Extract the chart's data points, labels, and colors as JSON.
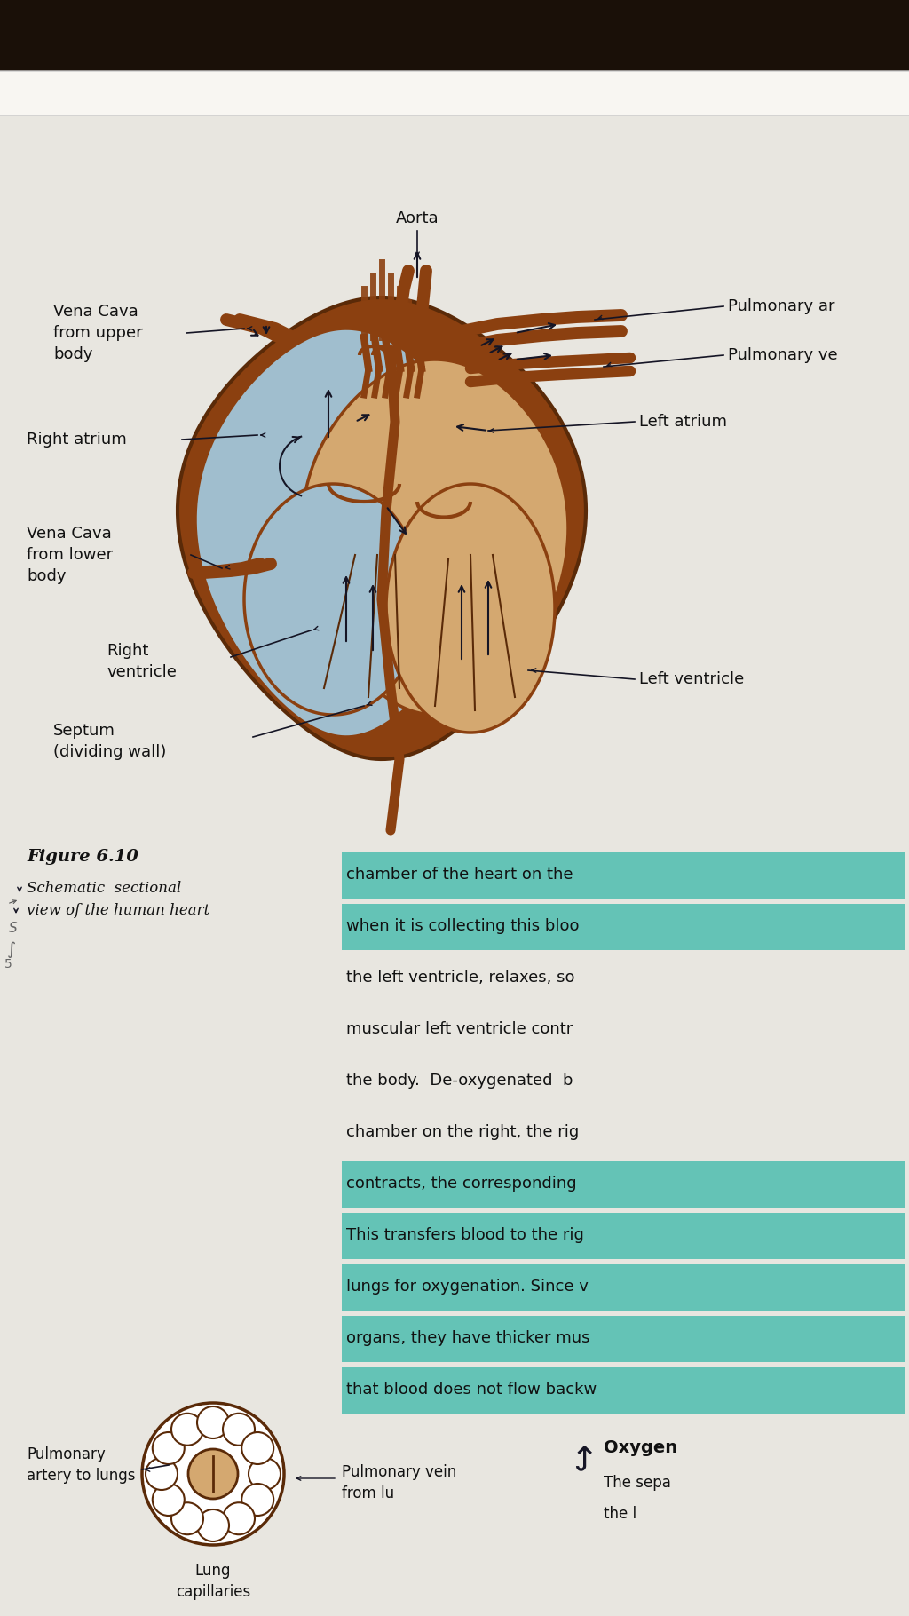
{
  "bg_top_color": "#1a1008",
  "paper_color": "#e8e6e0",
  "heart_brown": "#8B4010",
  "heart_brown_dark": "#5a2a08",
  "right_fill": "#a0bece",
  "left_fill": "#d4a870",
  "arrow_color": "#151525",
  "highlight_teal": "#38b8a8",
  "text_color": "#111111",
  "grey_paper": "#d8d4ce",
  "title_text": "Figure 6.10",
  "subtitle1": "Schematic  sectional",
  "subtitle2": "view of the human heart",
  "highlighted_lines": [
    {
      "text": "chamber of the heart on the",
      "hl": true
    },
    {
      "text": "when it is collecting this bloo",
      "hl": true
    },
    {
      "text": "the left ventricle, relaxes, so",
      "hl": false
    },
    {
      "text": "muscular left ventricle contr",
      "hl": false
    },
    {
      "text": "the body.  De-oxygenated  b",
      "hl": false
    },
    {
      "text": "chamber on the right, the rig",
      "hl": false
    },
    {
      "text": "contracts, the corresponding",
      "hl": true
    },
    {
      "text": "This transfers blood to the rig",
      "hl": true
    },
    {
      "text": "lungs for oxygenation. Since v",
      "hl": true
    },
    {
      "text": "organs, they have thicker mus",
      "hl": true
    },
    {
      "text": "that blood does not flow backw",
      "hl": true
    }
  ]
}
